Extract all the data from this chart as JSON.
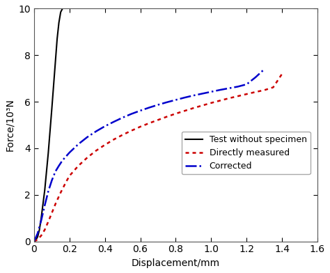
{
  "title": "",
  "xlabel": "Displacement/mm",
  "ylabel": "Force/10³N",
  "xlim": [
    0,
    1.6
  ],
  "ylim": [
    0,
    10
  ],
  "xticks": [
    0,
    0.2,
    0.4,
    0.6,
    0.8,
    1.0,
    1.2,
    1.4,
    1.6
  ],
  "yticks": [
    0,
    2,
    4,
    6,
    8,
    10
  ],
  "background_color": "#ffffff",
  "legend_labels": [
    "Test without specimen",
    "Directly measured",
    "Corrected"
  ],
  "legend_colors": [
    "#000000",
    "#cc0000",
    "#0000cc"
  ],
  "curve_black": {
    "x": [
      0.0,
      0.005,
      0.01,
      0.02,
      0.03,
      0.04,
      0.06,
      0.08,
      0.1,
      0.12,
      0.13,
      0.14,
      0.15,
      0.16
    ],
    "y": [
      0.0,
      0.02,
      0.06,
      0.2,
      0.5,
      1.0,
      2.2,
      3.8,
      5.7,
      7.7,
      8.7,
      9.4,
      9.85,
      10.0
    ]
  },
  "curve_red": {
    "x": [
      0.0,
      0.02,
      0.04,
      0.06,
      0.08,
      0.1,
      0.12,
      0.15,
      0.18,
      0.2,
      0.25,
      0.3,
      0.35,
      0.4,
      0.45,
      0.5,
      0.55,
      0.6,
      0.65,
      0.7,
      0.75,
      0.8,
      0.85,
      0.9,
      0.95,
      1.0,
      1.05,
      1.1,
      1.15,
      1.2,
      1.25,
      1.3,
      1.35,
      1.4
    ],
    "y": [
      0.0,
      0.08,
      0.25,
      0.5,
      0.85,
      1.22,
      1.6,
      2.1,
      2.55,
      2.82,
      3.25,
      3.6,
      3.9,
      4.15,
      4.38,
      4.58,
      4.76,
      4.93,
      5.08,
      5.22,
      5.36,
      5.49,
      5.61,
      5.73,
      5.84,
      5.95,
      6.05,
      6.15,
      6.24,
      6.33,
      6.42,
      6.5,
      6.62,
      7.2
    ]
  },
  "curve_blue": {
    "x": [
      0.0,
      0.02,
      0.04,
      0.06,
      0.08,
      0.1,
      0.12,
      0.14,
      0.16,
      0.18,
      0.2,
      0.25,
      0.3,
      0.35,
      0.4,
      0.45,
      0.5,
      0.55,
      0.6,
      0.65,
      0.7,
      0.75,
      0.8,
      0.85,
      0.9,
      0.95,
      1.0,
      1.05,
      1.1,
      1.15,
      1.2,
      1.25,
      1.3
    ],
    "y": [
      0.0,
      0.35,
      0.9,
      1.55,
      2.15,
      2.62,
      3.0,
      3.25,
      3.48,
      3.65,
      3.82,
      4.18,
      4.48,
      4.73,
      4.95,
      5.14,
      5.32,
      5.48,
      5.62,
      5.75,
      5.87,
      5.98,
      6.08,
      6.18,
      6.27,
      6.35,
      6.43,
      6.51,
      6.58,
      6.65,
      6.75,
      7.05,
      7.4
    ]
  }
}
